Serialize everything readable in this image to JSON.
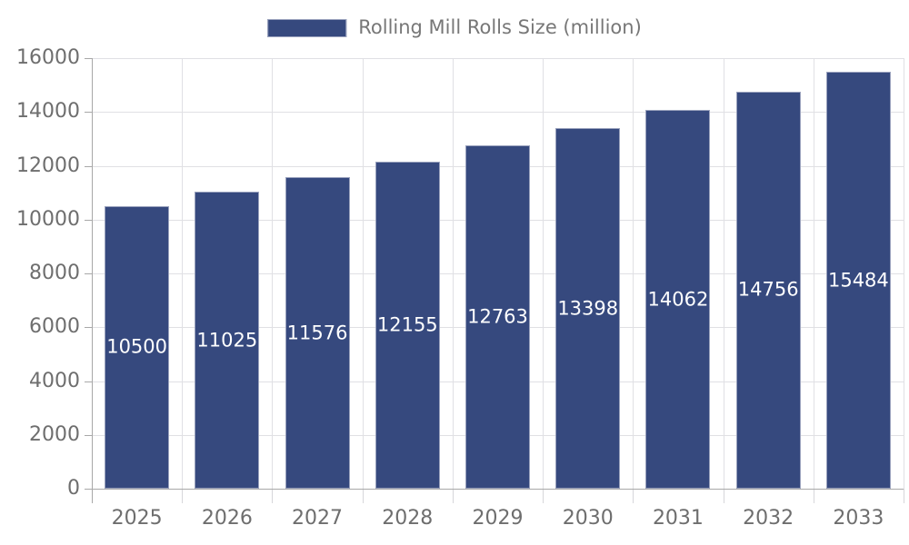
{
  "legend": {
    "label": "Rolling Mill Rolls Size (million)"
  },
  "chart_data": {
    "type": "bar",
    "title": "Rolling Mill Rolls Size (million)",
    "categories": [
      "2025",
      "2026",
      "2027",
      "2028",
      "2029",
      "2030",
      "2031",
      "2032",
      "2033"
    ],
    "values": [
      10500,
      11025,
      11576,
      12155,
      12763,
      13398,
      14062,
      14756,
      15484
    ],
    "xlabel": "",
    "ylabel": "",
    "ylim": [
      0,
      16000
    ],
    "ytick_step": 2000,
    "yticks": [
      0,
      2000,
      4000,
      6000,
      8000,
      10000,
      12000,
      14000,
      16000
    ],
    "grid": true,
    "legend_position": "top-center",
    "bar_labels_inside": true,
    "colors": {
      "bar_fill": "#36497E",
      "bar_edge": "#9AA2BD",
      "bar_label_text": "#FFFFFF",
      "grid_line": "#E0E0E4",
      "axis_line": "#A8A8A8",
      "tick_label_text": "#6E6E6E",
      "legend_text": "#777777",
      "background": "#FFFFFF"
    }
  }
}
